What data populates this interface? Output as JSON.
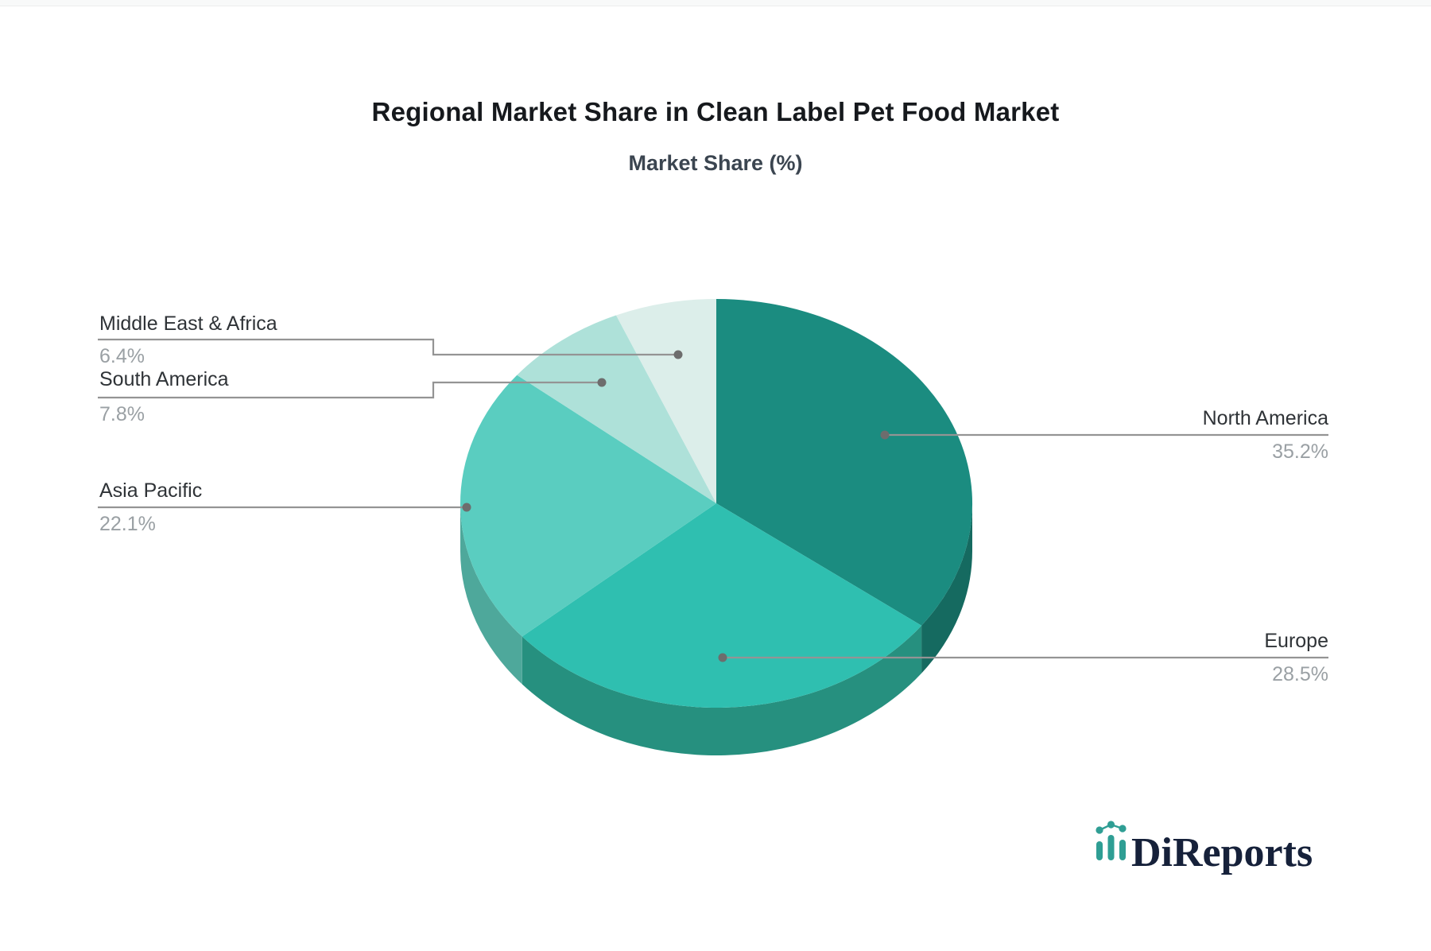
{
  "chart_data": {
    "type": "pie",
    "title": "Regional Market Share in Clean Label Pet Food Market",
    "subtitle": "Market Share (%)",
    "unit": "%",
    "style_3d": true,
    "start_angle": "12-oclock",
    "direction": "clockwise",
    "slices": [
      {
        "name": "North America",
        "value": 35.2,
        "label": "35.2%",
        "color": "#1b8c80",
        "side_color": "#156a60",
        "label_side": "right"
      },
      {
        "name": "Europe",
        "value": 28.5,
        "label": "28.5%",
        "color": "#2fbfb0",
        "side_color": "#26907f",
        "label_side": "right"
      },
      {
        "name": "Asia Pacific",
        "value": 22.1,
        "label": "22.1%",
        "color": "#5acdc0",
        "side_color": "#4ea89b",
        "label_side": "left"
      },
      {
        "name": "South America",
        "value": 7.8,
        "label": "7.8%",
        "color": "#aee1d9",
        "side_color": "#8cc7bf",
        "label_side": "left"
      },
      {
        "name": "Middle East & Africa",
        "value": 6.4,
        "label": "6.4%",
        "color": "#dceeea",
        "side_color": "#b9d8d3",
        "label_side": "left"
      }
    ],
    "legend": "none",
    "connector_line_color": "#949494",
    "connector_dot_color": "#6d6d6d",
    "label_name_color": "#2f3337",
    "label_value_color": "#9aa0a4"
  },
  "branding": {
    "logo_text": "DiReports",
    "logo_icon": "mini-bar-line-chart-icon",
    "logo_icon_color": "#2f9e94",
    "logo_text_color": "#16213a"
  }
}
